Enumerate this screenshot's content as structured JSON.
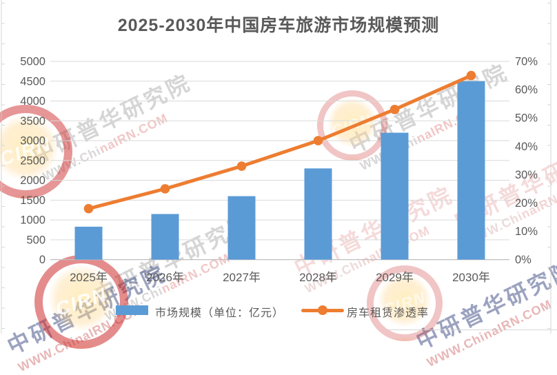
{
  "chart_data": {
    "type": "combo-bar-line",
    "title": "2025-2030年中国房车旅游市场规模预测",
    "categories": [
      "2025年",
      "2026年",
      "2027年",
      "2028年",
      "2029年",
      "2030年"
    ],
    "series": [
      {
        "name": "市场规模（单位：亿元）",
        "type": "bar",
        "axis": "left",
        "color": "#5B9BD5",
        "values": [
          830,
          1150,
          1600,
          2300,
          3200,
          4500
        ]
      },
      {
        "name": "房车租赁渗透率",
        "type": "line",
        "axis": "right",
        "color": "#ED7D31",
        "values": [
          18,
          25,
          33,
          42,
          53,
          65
        ],
        "unit": "%"
      }
    ],
    "y_left": {
      "min": 0,
      "max": 5000,
      "step": 500,
      "tick_labels": [
        "0",
        "500",
        "1000",
        "1500",
        "2000",
        "2500",
        "3000",
        "3500",
        "4000",
        "4500",
        "5000"
      ]
    },
    "y_right": {
      "min": 0,
      "max": 70,
      "step": 10,
      "suffix": "%",
      "tick_labels": [
        "0%",
        "10%",
        "20%",
        "30%",
        "40%",
        "50%",
        "60%",
        "70%"
      ]
    },
    "grid": true,
    "legend_position": "bottom"
  },
  "watermark": {
    "url": "WWW.ChinaIRN.COM",
    "org": "中研普华研究院",
    "logo": "CIRN"
  },
  "style": {
    "grid_color": "#D9D9D9",
    "axis_color": "#BFBFBF",
    "tick_text_color": "#595959",
    "bar_color": "#5B9BD5",
    "line_color": "#ED7D31",
    "title_color": "#595959"
  }
}
